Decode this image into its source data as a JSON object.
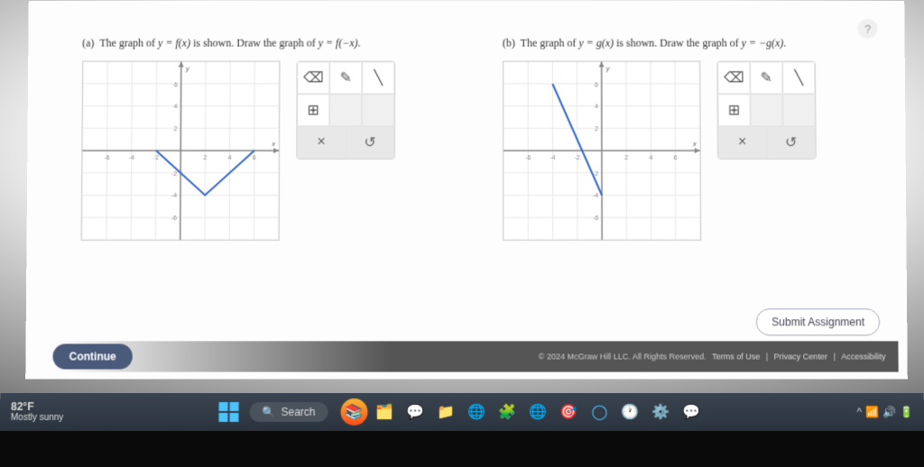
{
  "help_icon": "?",
  "problem_a": {
    "label": "(a)",
    "text_prefix": "The graph of ",
    "eq1": "y = f(x)",
    "text_mid": " is shown. Draw the graph of ",
    "eq2": "y = f(−x)",
    "period": ".",
    "graph": {
      "xlim": [
        -8,
        8
      ],
      "ylim": [
        -8,
        8
      ],
      "tick_step": 2,
      "grid_color": "#e8e8e8",
      "axis_color": "#888",
      "line_color": "#3366cc",
      "line_width": 2,
      "points": [
        [
          -2,
          0
        ],
        [
          2,
          -4
        ],
        [
          6,
          0
        ]
      ]
    }
  },
  "problem_b": {
    "label": "(b)",
    "text_prefix": "The graph of ",
    "eq1": "y = g(x)",
    "text_mid": " is shown. Draw the graph of ",
    "eq2": "y = −g(x)",
    "period": ".",
    "graph": {
      "xlim": [
        -8,
        8
      ],
      "ylim": [
        -8,
        8
      ],
      "tick_step": 2,
      "grid_color": "#e8e8e8",
      "axis_color": "#888",
      "line_color": "#3366cc",
      "line_width": 2,
      "points": [
        [
          -4,
          6
        ],
        [
          0,
          -4
        ]
      ]
    }
  },
  "tools": {
    "eraser": "⌫",
    "pencil": "✎",
    "line": "╲",
    "grid": "⊞",
    "clear": "×",
    "reset": "↺"
  },
  "buttons": {
    "submit": "Submit Assignment",
    "continue": "Continue"
  },
  "footer": {
    "copyright": "© 2024 McGraw Hill LLC. All Rights Reserved.",
    "terms": "Terms of Use",
    "privacy": "Privacy Center",
    "accessibility": "Accessibility"
  },
  "taskbar": {
    "search_placeholder": "Search",
    "weather_temp": "82°F",
    "weather_desc": "Mostly sunny"
  },
  "tray": {
    "chevron": "^",
    "wifi": "📶",
    "volume": "🔊",
    "battery": "🔋"
  }
}
